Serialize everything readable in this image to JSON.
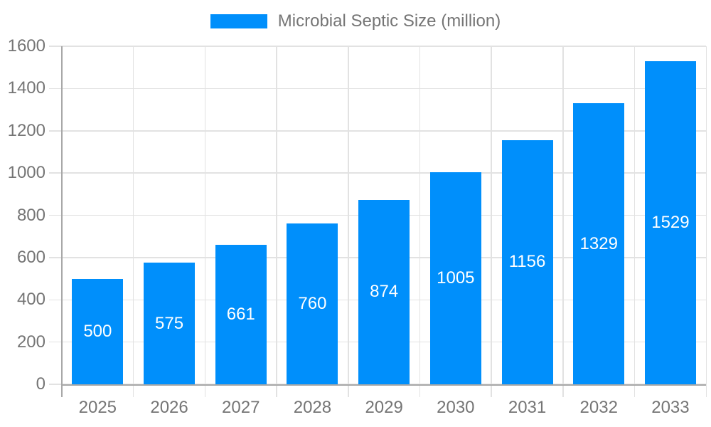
{
  "chart_data": {
    "type": "bar",
    "legend": {
      "label": "Microbial Septic Size (million)",
      "position": "top-center"
    },
    "categories": [
      "2025",
      "2026",
      "2027",
      "2028",
      "2029",
      "2030",
      "2031",
      "2032",
      "2033"
    ],
    "series": [
      {
        "name": "Microbial Septic Size (million)",
        "values": [
          500,
          575,
          661,
          760,
          874,
          1005,
          1156,
          1329,
          1529
        ]
      }
    ],
    "yticks": [
      0,
      200,
      400,
      600,
      800,
      1000,
      1200,
      1400,
      1600
    ],
    "ylim": [
      0,
      1600
    ],
    "grid": true,
    "data_labels": {
      "position": "inside-center"
    },
    "colors": {
      "bar": "#008ffb",
      "data_label_text": "#ffffff",
      "axis_label_text": "#757575",
      "legend_text": "#757575",
      "grid_line": "#e2e2e2",
      "axis_line": "#a8a8a8",
      "background": "#ffffff"
    }
  }
}
